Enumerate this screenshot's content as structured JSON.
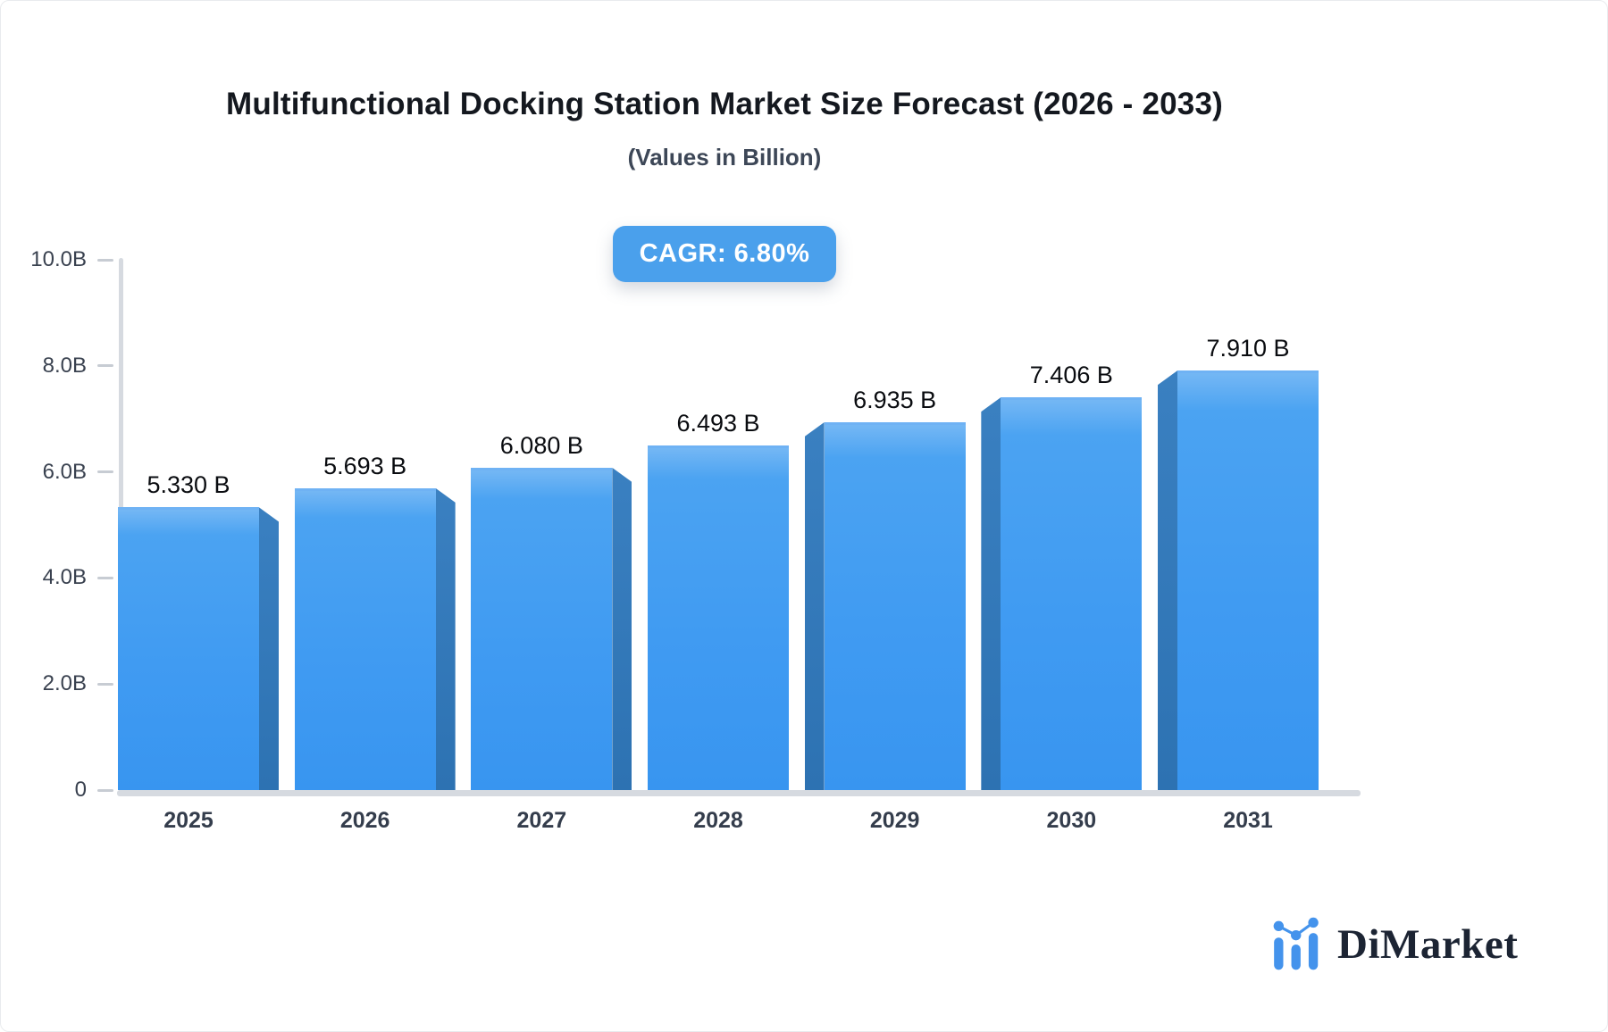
{
  "header": {
    "title": "Multifunctional Docking Station Market Size Forecast (2026 - 2033)",
    "subtitle": "(Values in Billion)",
    "cagr_badge": "CAGR: 6.80%"
  },
  "chart_data": {
    "type": "bar",
    "title": "Multifunctional Docking Station Market Size Forecast (2026 - 2033)",
    "subtitle": "(Values in Billion)",
    "xlabel": "",
    "ylabel": "",
    "categories": [
      "2025",
      "2026",
      "2027",
      "2028",
      "2029",
      "2030",
      "2031"
    ],
    "values": [
      5.33,
      5.693,
      6.08,
      6.493,
      6.935,
      7.406,
      7.91
    ],
    "value_labels": [
      "5.330 B",
      "5.693 B",
      "6.080 B",
      "6.493 B",
      "6.935 B",
      "7.406 B",
      "7.910 B"
    ],
    "ylim": [
      0,
      10
    ],
    "y_ticks": [
      {
        "label": "10.0B",
        "value": 10
      },
      {
        "label": "8.0B",
        "value": 8
      },
      {
        "label": "6.0B",
        "value": 6
      },
      {
        "label": "4.0B",
        "value": 4
      },
      {
        "label": "2.0B",
        "value": 2
      },
      {
        "label": "0",
        "value": 0
      }
    ],
    "grid": false,
    "legend": "none",
    "bar_color": "#419cf2",
    "bar_side_color": "#2d72b2",
    "axis_color": "#d6dae0",
    "badge_color": "#4aa0ec"
  },
  "logo": {
    "text": "DiMarket",
    "icon": "bar-line-chart-icon",
    "icon_color": "#4493ec",
    "text_color": "#1c2433"
  }
}
